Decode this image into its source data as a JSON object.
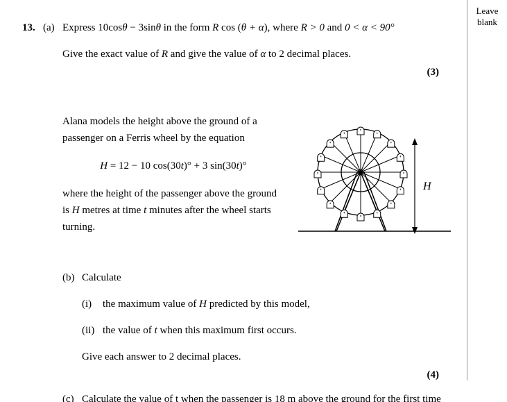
{
  "margin": {
    "line1": "Leave",
    "line2": "blank"
  },
  "question": {
    "number": "13.",
    "partA": {
      "label": "(a)",
      "line1_pre": "Express 10cos",
      "line1_theta1": "θ",
      "line1_mid": " − 3sin",
      "line1_theta2": "θ",
      "line1_post": " in the form ",
      "line1_R": "R",
      "line1_cos": " cos (",
      "line1_arg": "θ + α",
      "line1_after": "), where ",
      "line1_cond1": "R > 0",
      "line1_and": " and ",
      "line1_cond2": "0 < α < 90°",
      "line2_pre": "Give the exact value of ",
      "line2_R": "R",
      "line2_mid": " and give the value of ",
      "line2_alpha": "α",
      "line2_post": " to 2 decimal places.",
      "marks": "(3)"
    },
    "context": {
      "p1": "Alana models the height above the ground of a passenger on a Ferris wheel by the equation",
      "eqn_pre": "H",
      "eqn_eq": " = 12 − 10 cos(30",
      "eqn_t1": "t",
      "eqn_mid": ")° + 3 sin(30",
      "eqn_t2": "t",
      "eqn_post": ")°",
      "p2_pre": "where the height of the passenger above the ground is ",
      "p2_H": "H",
      "p2_mid1": " metres at time ",
      "p2_t": "t",
      "p2_mid2": " minutes after the wheel starts turning."
    },
    "partB": {
      "label": "(b)",
      "text": "Calculate",
      "i": {
        "label": "(i)",
        "pre": "the maximum value of ",
        "H": "H",
        "post": " predicted by this model,"
      },
      "ii": {
        "label": "(ii)",
        "pre": "the value of ",
        "t": "t",
        "post": " when this maximum first occurs."
      },
      "note": "Give each answer to 2 decimal places.",
      "marks": "(4)"
    },
    "partC": {
      "label": "(c)",
      "text": "Calculate the value of t when the passenger is 18 m above the ground for the first time"
    }
  },
  "diagram": {
    "H_label": "H"
  }
}
